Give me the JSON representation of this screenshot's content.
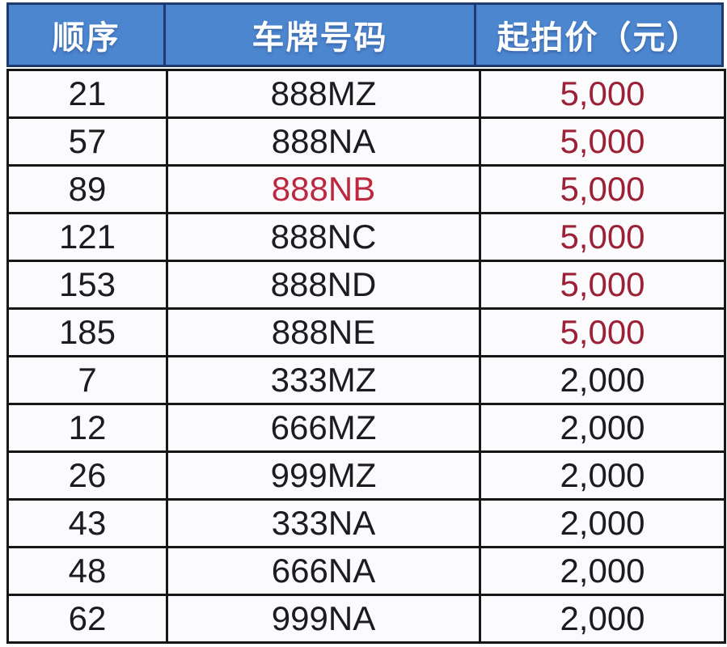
{
  "table": {
    "columns": [
      {
        "label": "顺序"
      },
      {
        "label": "车牌号码"
      },
      {
        "label": "起拍价（元）"
      }
    ],
    "rows": [
      {
        "order": "21",
        "plate": "888MZ",
        "price": "5,000",
        "plate_red": false,
        "price_red": true
      },
      {
        "order": "57",
        "plate": "888NA",
        "price": "5,000",
        "plate_red": false,
        "price_red": true
      },
      {
        "order": "89",
        "plate": "888NB",
        "price": "5,000",
        "plate_red": true,
        "price_red": true
      },
      {
        "order": "121",
        "plate": "888NC",
        "price": "5,000",
        "plate_red": false,
        "price_red": true
      },
      {
        "order": "153",
        "plate": "888ND",
        "price": "5,000",
        "plate_red": false,
        "price_red": true
      },
      {
        "order": "185",
        "plate": "888NE",
        "price": "5,000",
        "plate_red": false,
        "price_red": true
      },
      {
        "order": "7",
        "plate": "333MZ",
        "price": "2,000",
        "plate_red": false,
        "price_red": false
      },
      {
        "order": "12",
        "plate": "666MZ",
        "price": "2,000",
        "plate_red": false,
        "price_red": false
      },
      {
        "order": "26",
        "plate": "999MZ",
        "price": "2,000",
        "plate_red": false,
        "price_red": false
      },
      {
        "order": "43",
        "plate": "333NA",
        "price": "2,000",
        "plate_red": false,
        "price_red": false
      },
      {
        "order": "48",
        "plate": "666NA",
        "price": "2,000",
        "plate_red": false,
        "price_red": false
      },
      {
        "order": "62",
        "plate": "999NA",
        "price": "2,000",
        "plate_red": false,
        "price_red": false
      }
    ]
  },
  "colors": {
    "page_bg": "#ffffff",
    "header_bg": "#4c86cf",
    "header_border": "#1e3a6e",
    "header_text": "#ffffff",
    "row_bg": "#fbfbfd",
    "grid_border": "#161616",
    "text_black": "#1c1c1e",
    "price_red": "#9d2136",
    "plate_red": "#bc2840"
  }
}
